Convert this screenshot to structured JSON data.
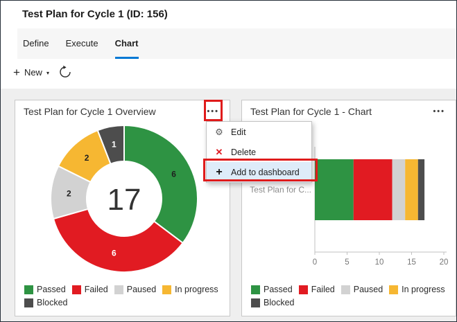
{
  "window": {
    "title": "Test Plan for Cycle 1 (ID: 156)"
  },
  "tabs": [
    {
      "label": "Define",
      "active": false
    },
    {
      "label": "Execute",
      "active": false
    },
    {
      "label": "Chart",
      "active": true
    }
  ],
  "toolbar": {
    "plus_icon": "+",
    "new_label": "New",
    "caret_icon": "▾",
    "refresh_icon": "refresh"
  },
  "more_icon": "•••",
  "colors": {
    "accent": "#0078D4",
    "annotation_red": "#DF1B1B",
    "menu_highlight": "#DEECF9",
    "passed": "#2E9343",
    "failed": "#E11B22",
    "paused": "#D2D2D2",
    "in_progress": "#F6B732",
    "blocked": "#4D4D4D"
  },
  "context_menu": {
    "items": [
      {
        "icon": "gear-icon",
        "label": "Edit",
        "highlighted": false
      },
      {
        "icon": "delete-x-icon",
        "label": "Delete",
        "highlighted": false
      },
      {
        "icon": "plus-icon",
        "label": "Add to dashboard",
        "highlighted": true
      }
    ]
  },
  "chart_data": [
    {
      "type": "pie",
      "subtype": "donut",
      "title": "Test Plan for Cycle 1 Overview",
      "center_label": "17",
      "total": 17,
      "legend_position": "bottom",
      "series": [
        {
          "name": "Passed",
          "value": 6,
          "color": "#2E9343",
          "label_color": "#1e1e1e"
        },
        {
          "name": "Failed",
          "value": 6,
          "color": "#E11B22",
          "label_color": "#ffffff"
        },
        {
          "name": "Paused",
          "value": 2,
          "color": "#D2D2D2",
          "label_color": "#1e1e1e"
        },
        {
          "name": "In progress",
          "value": 2,
          "color": "#F6B732",
          "label_color": "#1e1e1e"
        },
        {
          "name": "Blocked",
          "value": 1,
          "color": "#4D4D4D",
          "label_color": "#ffffff"
        }
      ]
    },
    {
      "type": "bar",
      "subtype": "horizontal-stacked",
      "title": "Test Plan for Cycle 1 - Chart",
      "category_label": "Test Plan for C...",
      "x_ticks": [
        0,
        5,
        10,
        15,
        20
      ],
      "xlim": [
        0,
        20
      ],
      "legend_position": "bottom",
      "grid": false,
      "series": [
        {
          "name": "Passed",
          "value": 6,
          "color": "#2E9343"
        },
        {
          "name": "Failed",
          "value": 6,
          "color": "#E11B22"
        },
        {
          "name": "Paused",
          "value": 2,
          "color": "#D2D2D2"
        },
        {
          "name": "In progress",
          "value": 2,
          "color": "#F6B732"
        },
        {
          "name": "Blocked",
          "value": 1,
          "color": "#4D4D4D"
        }
      ]
    }
  ]
}
